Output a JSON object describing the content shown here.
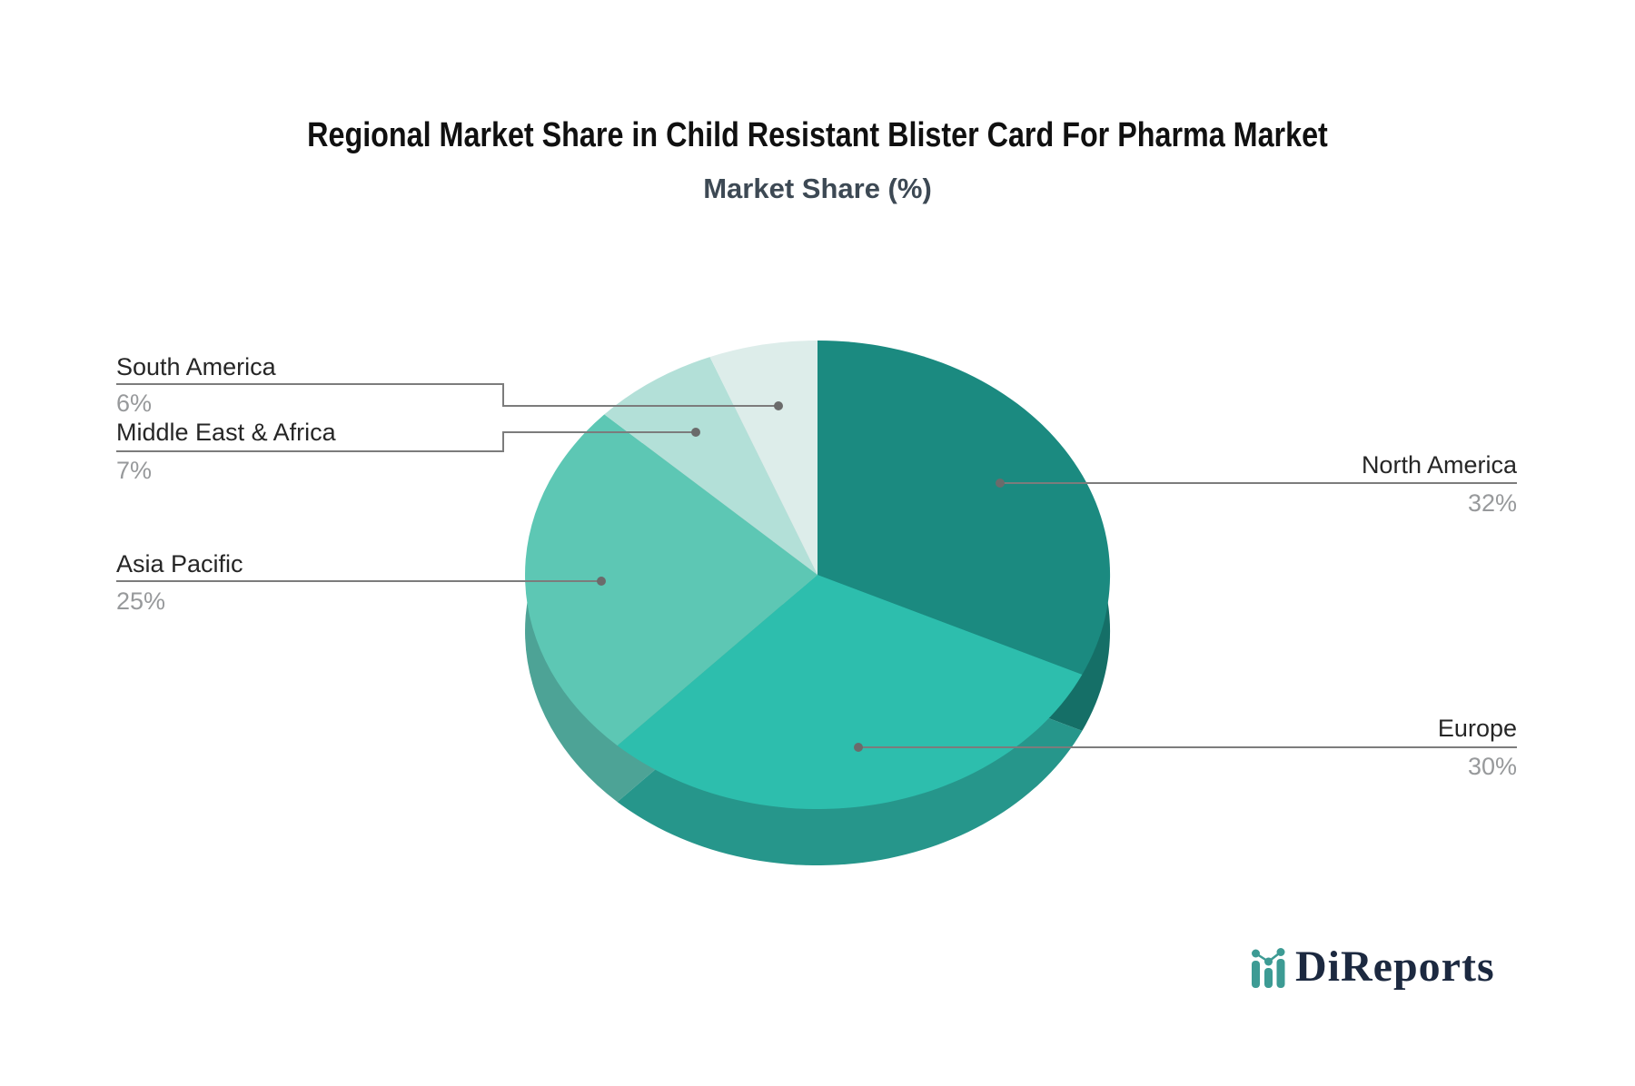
{
  "chart_data": {
    "type": "pie",
    "style": "3d",
    "title": "Regional Market Share in Child Resistant Blister Card For Pharma Market",
    "subtitle": "Market Share (%)",
    "unit": "%",
    "start_angle_deg": -90,
    "direction": "clockwise",
    "grid": false,
    "legend_position": "callout-labels-with-leader-lines",
    "label_color": "#262626",
    "value_color": "#97999b",
    "leader_color": "#7c7c7c",
    "dot_color": "#6b6b6b",
    "slices": [
      {
        "label": "North America",
        "value": 32,
        "display": "32%",
        "color": "#1b8a80",
        "side_color": "#156f67"
      },
      {
        "label": "Europe",
        "value": 30,
        "display": "30%",
        "color": "#2dbead",
        "side_color": "#26968b"
      },
      {
        "label": "Asia Pacific",
        "value": 25,
        "display": "25%",
        "color": "#5dc7b4",
        "side_color": "#4da396"
      },
      {
        "label": "Middle East & Africa",
        "value": 7,
        "display": "7%",
        "color": "#b3e0d8",
        "side_color": "#93beb6"
      },
      {
        "label": "South America",
        "value": 6,
        "display": "6%",
        "color": "#ddedea",
        "side_color": "#b8ccc8"
      }
    ]
  },
  "brand": {
    "name": "DiReports",
    "icon": "bar-chart-trend-icon",
    "icon_color": "#3d9b94",
    "text_color": "#1c2940"
  }
}
